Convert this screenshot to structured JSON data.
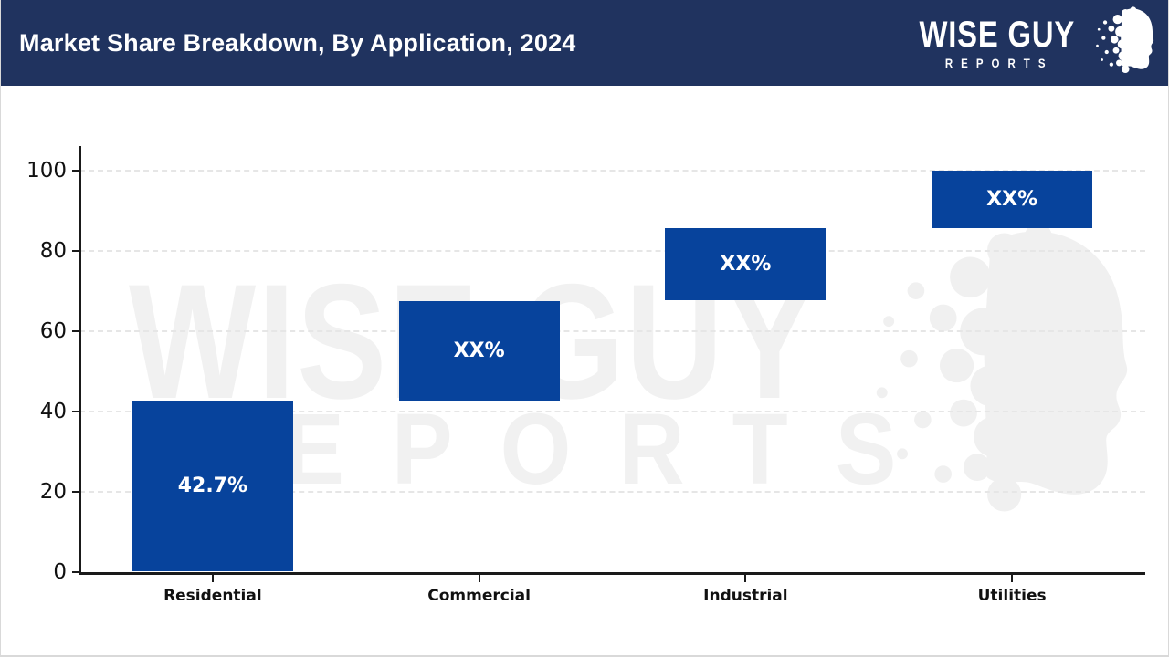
{
  "header": {
    "title": "Market Share Breakdown, By Application, 2024",
    "logo": {
      "line1": "WISE GUY",
      "line2": "REPORTS"
    }
  },
  "watermark": {
    "line1": "WISE GUY",
    "line2": "REPORTS"
  },
  "colors": {
    "header_bg": "#20335f",
    "bar_blue": "#07439c",
    "grid": "#e6e6e6",
    "axis": "#1a1a1a",
    "watermark_gray": "#f1f1f1"
  },
  "chart_data": {
    "type": "bar",
    "variant": "waterfall",
    "title": "Market Share Breakdown, By Application, 2024",
    "xlabel": "",
    "ylabel": "",
    "categories": [
      "Residential",
      "Commercial",
      "Industrial",
      "Utilities"
    ],
    "segments": [
      {
        "category": "Residential",
        "start": 0,
        "end": 42.7,
        "label": "42.7%"
      },
      {
        "category": "Commercial",
        "start": 42.7,
        "end": 67.5,
        "label": "XX%"
      },
      {
        "category": "Industrial",
        "start": 67.5,
        "end": 85.5,
        "label": "XX%"
      },
      {
        "category": "Utilities",
        "start": 85.5,
        "end": 100,
        "label": "XX%"
      }
    ],
    "yticks": [
      0,
      20,
      40,
      60,
      80,
      100
    ],
    "ylim": [
      0,
      106
    ],
    "grid": true,
    "legend": false,
    "bar_color": "#07439c"
  }
}
